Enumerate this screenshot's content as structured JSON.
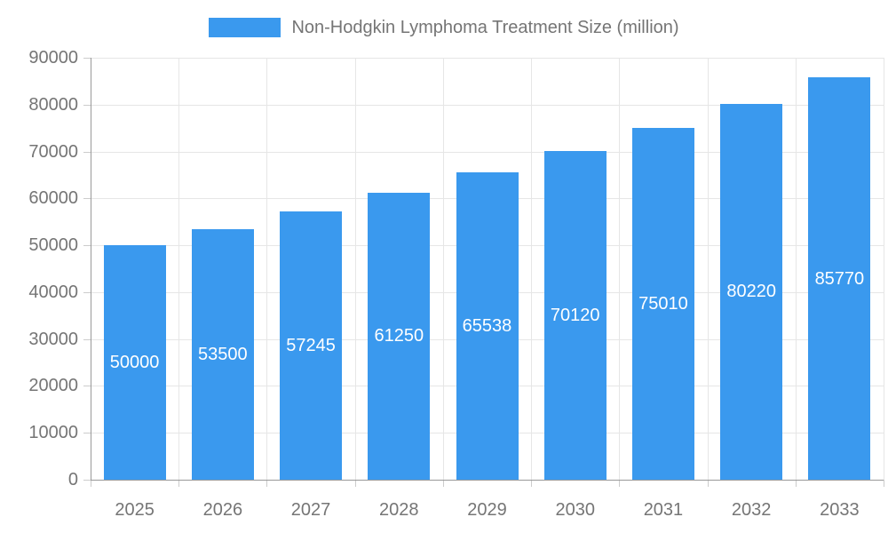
{
  "legend": {
    "label": "Non-Hodgkin Lymphoma Treatment Size (million)"
  },
  "colors": {
    "bar": "#3a99ee",
    "axis_text": "#757575",
    "bar_label_text": "#ffffff",
    "gridline": "#e6e6e6",
    "axis_line": "#999999",
    "tick": "#cccccc",
    "background": "#ffffff"
  },
  "chart_data": {
    "type": "bar",
    "title": "Non-Hodgkin Lymphoma Treatment Size (million)",
    "categories": [
      "2025",
      "2026",
      "2027",
      "2028",
      "2029",
      "2030",
      "2031",
      "2032",
      "2033"
    ],
    "values": [
      50000,
      53500,
      57245,
      61250,
      65538,
      70120,
      75010,
      80220,
      85770
    ],
    "bar_labels": [
      "50000",
      "53500",
      "57245",
      "61250",
      "65538",
      "70120",
      "75010",
      "80220",
      "85770"
    ],
    "xlabel": "",
    "ylabel": "",
    "ylim": [
      0,
      90000
    ],
    "ytick_step": 10000,
    "ytick_labels": [
      "0",
      "10000",
      "20000",
      "30000",
      "40000",
      "50000",
      "60000",
      "70000",
      "80000",
      "90000"
    ],
    "grid": true,
    "legend_position": "top-center",
    "bar_value_labels_position": "inside-center"
  }
}
